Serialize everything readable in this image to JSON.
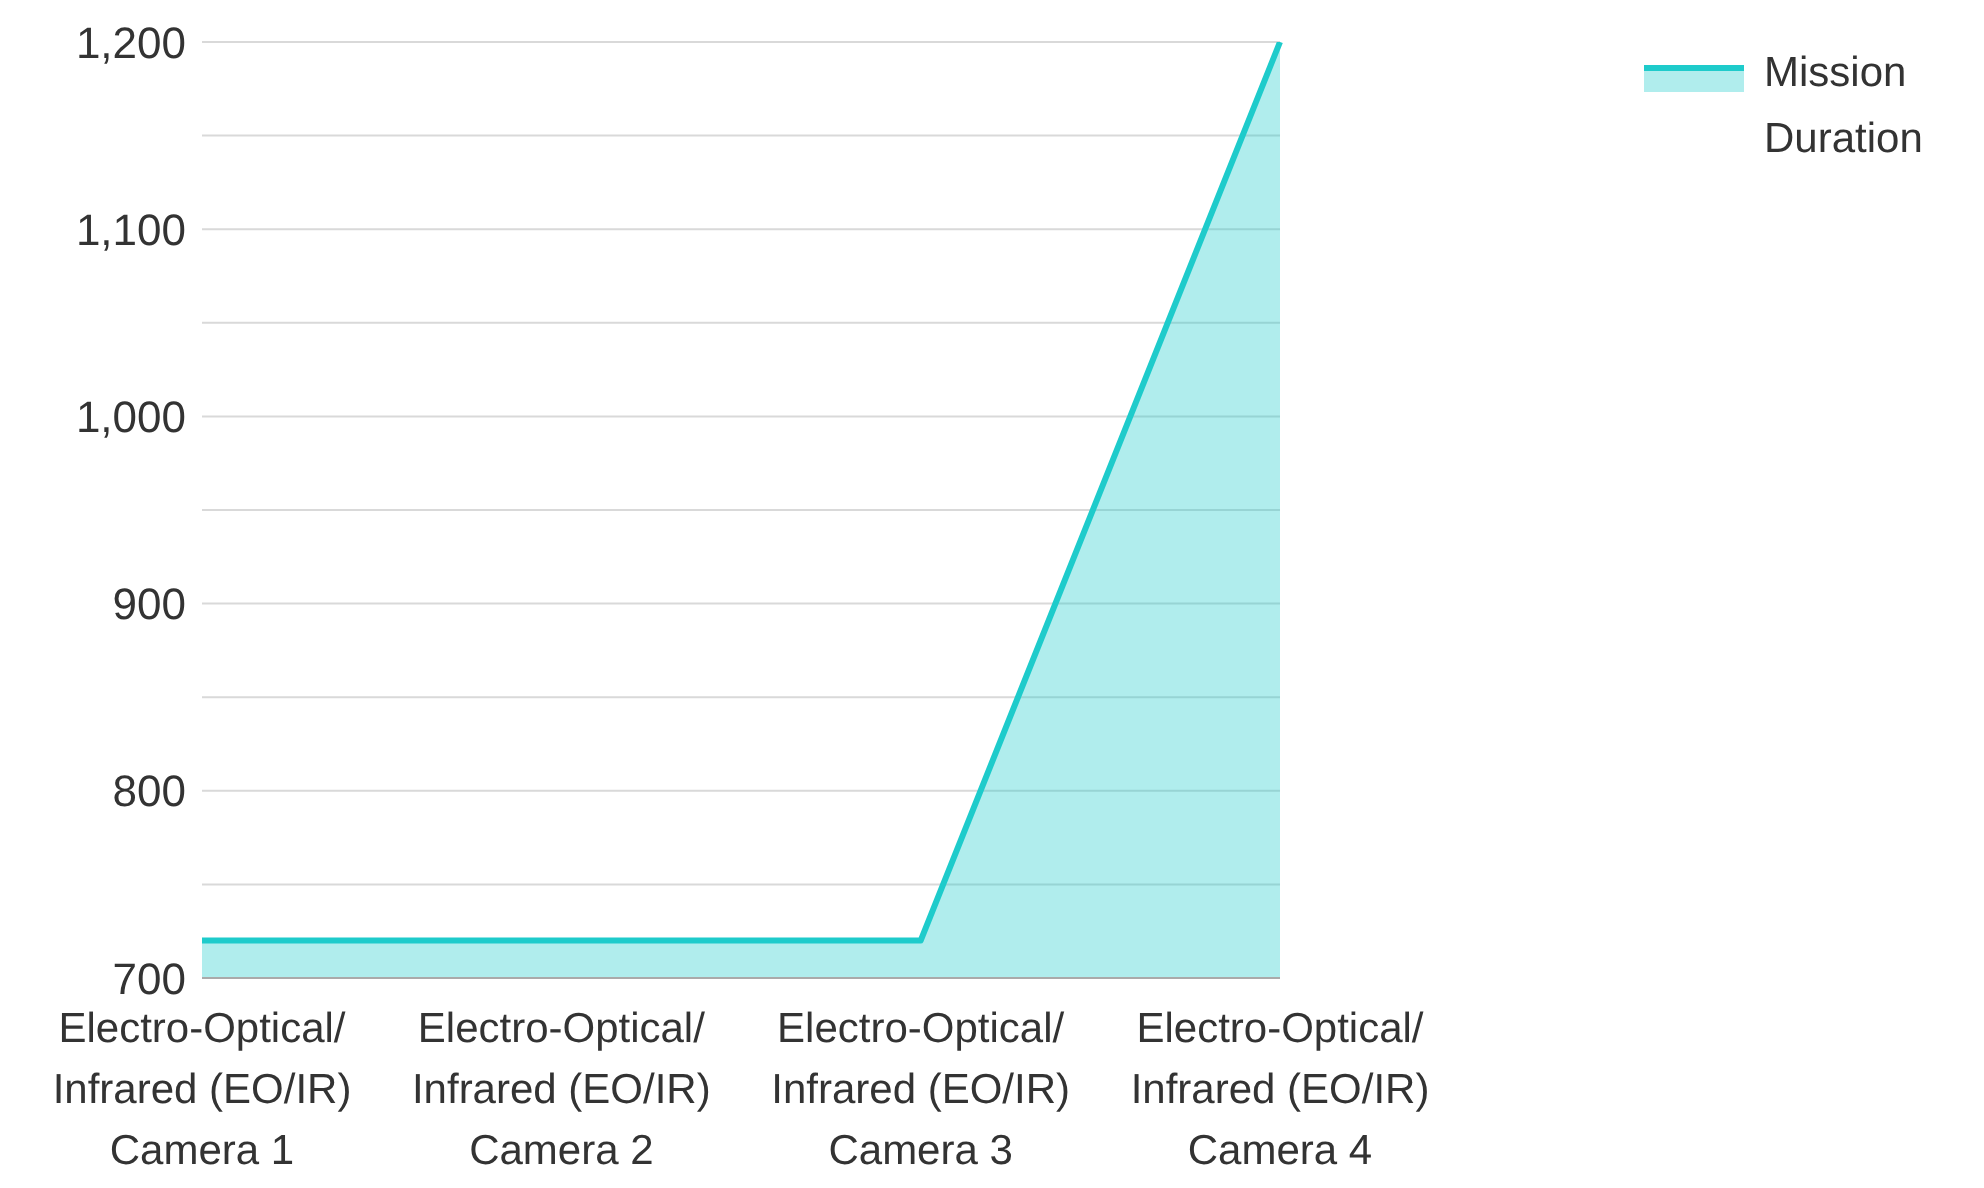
{
  "chart_data": {
    "type": "area",
    "categories": [
      "Electro-Optical/Infrared (EO/IR) Camera 1",
      "Electro-Optical/Infrared (EO/IR) Camera 2",
      "Electro-Optical/Infrared (EO/IR) Camera 3",
      "Electro-Optical/Infrared (EO/IR) Camera 4"
    ],
    "series": [
      {
        "name": "Mission Duration",
        "color": "#1ecbcb",
        "values": [
          720,
          720,
          720,
          1200
        ]
      }
    ],
    "ylim": [
      700,
      1200
    ],
    "yticks": [
      700,
      {
        "value": 750,
        "label": null
      },
      800,
      {
        "value": 850,
        "label": null
      },
      900,
      {
        "value": 950,
        "label": null
      },
      {
        "value": 1000,
        "label": "1,000"
      },
      {
        "value": 1050,
        "label": null
      },
      {
        "value": 1100,
        "label": "1,100"
      },
      {
        "value": 1150,
        "label": null
      },
      {
        "value": 1200,
        "label": "1,200"
      }
    ],
    "grid": "y",
    "legend": "top right"
  }
}
